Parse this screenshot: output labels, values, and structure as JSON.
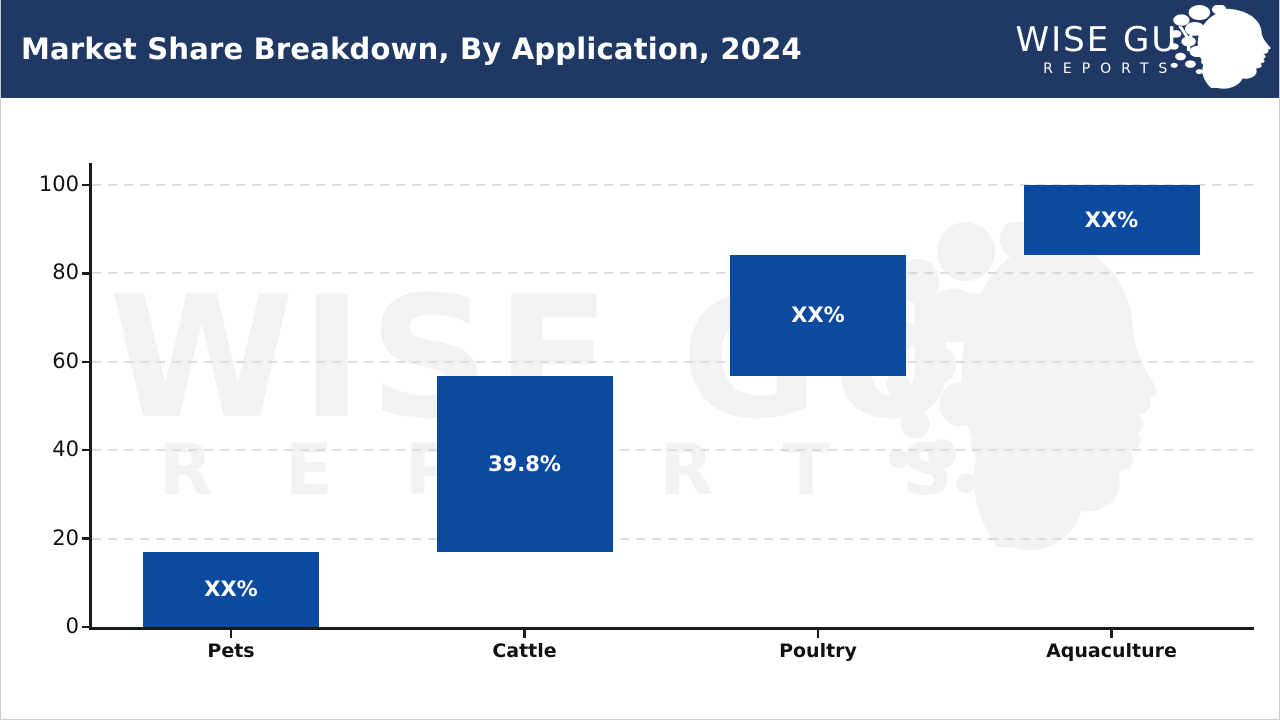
{
  "header": {
    "title": "Market Share Breakdown, By Application, 2024",
    "logo": {
      "line1": "WISE GUY",
      "line2": "REPORTS"
    }
  },
  "watermark": {
    "line1": "WISE GUY",
    "line2": "REPORTS"
  },
  "colors": {
    "header_bg": "#1f3864",
    "bar_blue": "#0c4aa0",
    "axis": "#1a1a1a",
    "gridline": "#dcdcdc",
    "watermark": "#f2f2f4",
    "bar_label": "#ffffff"
  },
  "chart_data": {
    "type": "bar",
    "subtype": "floating-segments-waterfall",
    "title": "Market Share Breakdown, By Application, 2024",
    "categories": [
      "Pets",
      "Cattle",
      "Poultry",
      "Aquaculture"
    ],
    "segments": [
      {
        "category": "Pets",
        "start": 0,
        "end": 17.0,
        "value_label": "XX%"
      },
      {
        "category": "Cattle",
        "start": 17.0,
        "end": 56.8,
        "value_label": "39.8%"
      },
      {
        "category": "Poultry",
        "start": 56.8,
        "end": 84.2,
        "value_label": "XX%"
      },
      {
        "category": "Aquaculture",
        "start": 84.2,
        "end": 100.0,
        "value_label": "XX%"
      }
    ],
    "yticks": [
      0,
      20,
      40,
      60,
      80,
      100
    ],
    "ylim": [
      0,
      105
    ],
    "xlabel": "",
    "ylabel": "",
    "grid": "horizontal-dashed",
    "legend": "none",
    "bar_color": "#0c4aa0",
    "label_color": "#ffffff"
  }
}
